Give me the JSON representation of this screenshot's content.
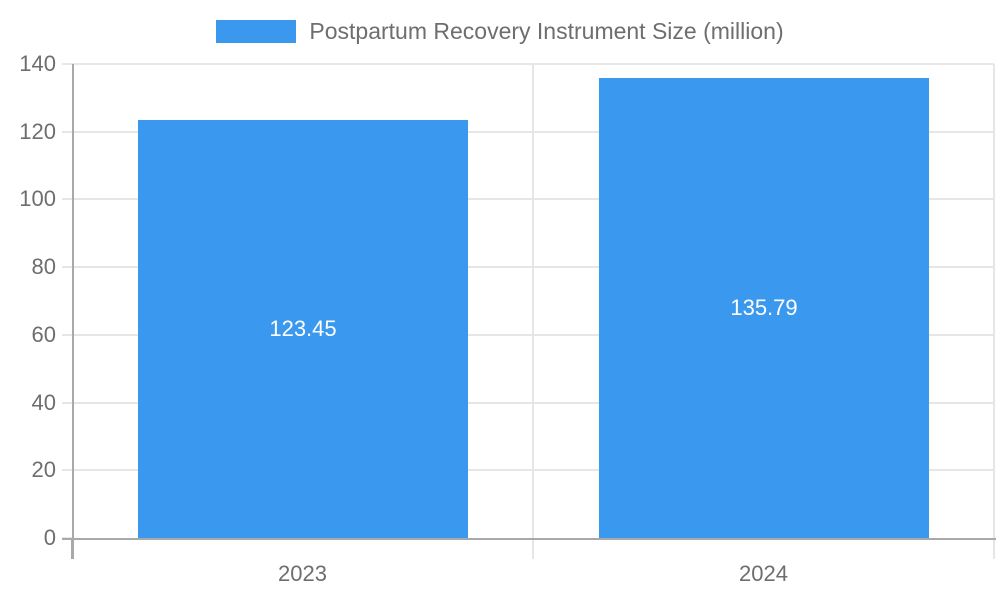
{
  "legend": {
    "label": "Postpartum Recovery Instrument Size (million)"
  },
  "chart_data": {
    "type": "bar",
    "title": "Postpartum Recovery Instrument Size (million)",
    "categories": [
      "2023",
      "2024"
    ],
    "values": [
      123.45,
      135.79
    ],
    "value_labels": [
      "123.45",
      "135.79"
    ],
    "xlabel": "",
    "ylabel": "",
    "ylim": [
      0,
      140
    ],
    "ytick_step": 20,
    "ytick_labels": [
      "0",
      "20",
      "40",
      "60",
      "80",
      "100",
      "120",
      "140"
    ],
    "grid": true,
    "legend_position": "top",
    "colors": {
      "bar": "#3a99ee",
      "bar_value_text": "#ffffff",
      "axis_text": "#6e6e6e",
      "grid_line": "#e6e6e6",
      "axis_line": "#a9a9a9"
    }
  }
}
